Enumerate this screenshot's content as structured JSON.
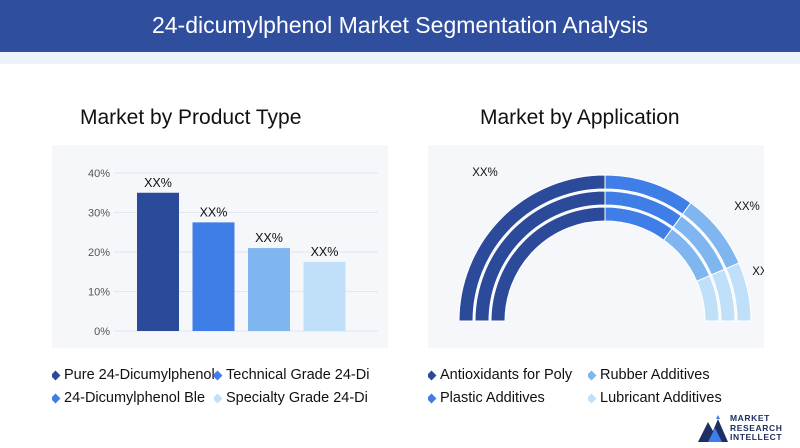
{
  "header": {
    "title": "24-dicumylphenol Market Segmentation Analysis"
  },
  "colors": {
    "header_bg": "#2f4f9e",
    "dark_blue": "#2c4a9a",
    "mid_blue": "#3f7ee6",
    "light_blue": "#7fb6f0",
    "pale_blue": "#bfe0f8"
  },
  "chart_data": [
    {
      "type": "bar",
      "title": "Market by Product Type",
      "categories": [
        "Pure 24-Dicumylphenol",
        "Technical Grade 24-Di",
        "24-Dicumylphenol Ble",
        "Specialty Grade 24-Di"
      ],
      "values": [
        35,
        27.5,
        21,
        17.5
      ],
      "data_labels": [
        "XX%",
        "XX%",
        "XX%",
        "XX%"
      ],
      "y_ticks": [
        "0%",
        "10%",
        "20%",
        "30%",
        "40%"
      ],
      "ylim": [
        0,
        40
      ],
      "colors": [
        "#2c4a9a",
        "#3f7ee6",
        "#7fb6f0",
        "#bfe0f8"
      ],
      "grid": true,
      "legend": "bottom"
    },
    {
      "type": "pie",
      "subtype": "semi-donut",
      "title": "Market by Application",
      "categories": [
        "Antioxidants for Poly",
        "Rubber Additives",
        "Plastic Additives",
        "Lubricant Additives"
      ],
      "values": [
        50,
        20,
        17,
        13
      ],
      "data_labels": [
        "XX%",
        "XX%",
        "XX%",
        "XX%"
      ],
      "colors": [
        "#2c4a9a",
        "#3f7ee6",
        "#7fb6f0",
        "#bfe0f8"
      ],
      "legend": "bottom"
    }
  ],
  "logo": {
    "line1": "MARKET",
    "line2": "RESEARCH",
    "line3": "INTELLECT",
    "icon": "mountain-logo-icon"
  }
}
